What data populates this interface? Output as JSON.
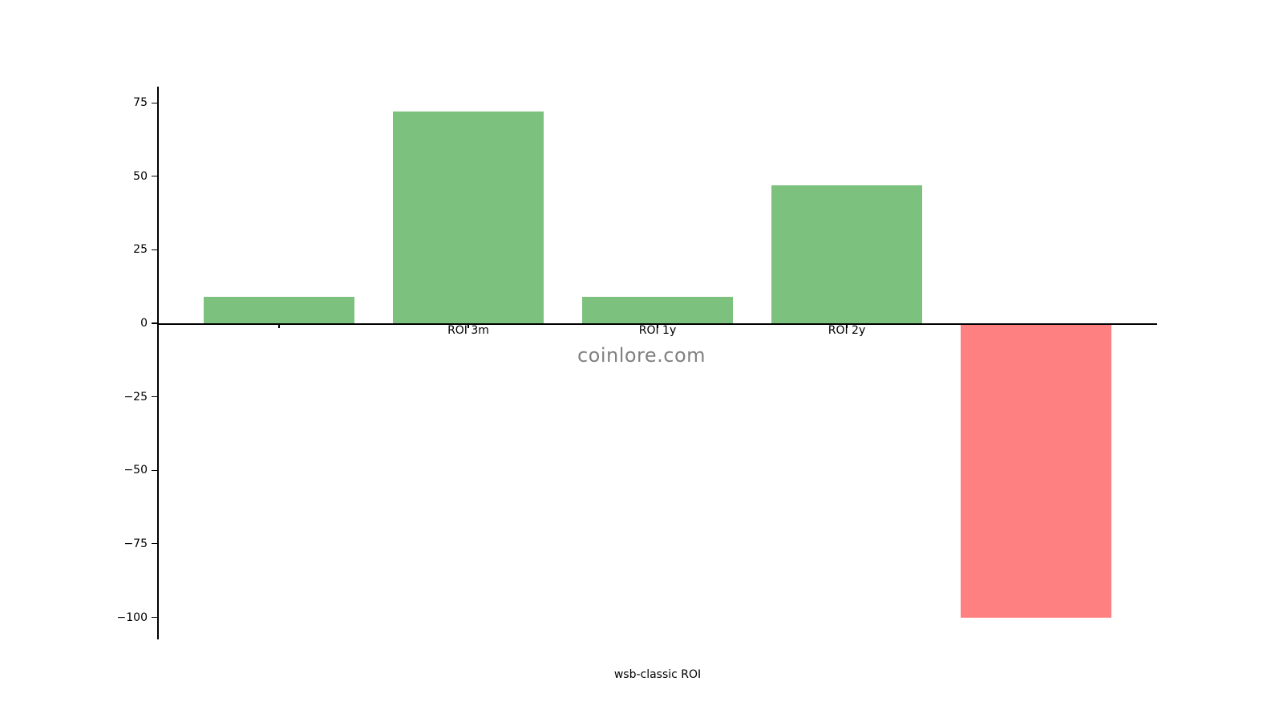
{
  "chart_data": {
    "type": "bar",
    "title": "",
    "xlabel": "wsb-classic ROI",
    "ylabel": "",
    "watermark": "coinlore.com",
    "categories": [
      "",
      "ROI 3m",
      "ROI 1y",
      "ROI 2y",
      ""
    ],
    "values": [
      9,
      72,
      9,
      47,
      -100
    ],
    "bar_colors": [
      "#7cc17d",
      "#7cc17d",
      "#7cc17d",
      "#7cc17d",
      "#ff8080"
    ],
    "positive_color": "#7cc17d",
    "negative_color": "#ff8080",
    "axis_color": "#000000",
    "tick_label_color": "#000000",
    "watermark_color": "#808080",
    "bar_width_units": 0.8,
    "xlim": [
      -0.64,
      4.64
    ],
    "ylim": [
      -107.5,
      80.5
    ],
    "yticks": [
      75,
      50,
      25,
      0,
      -25,
      -50,
      -75,
      -100
    ],
    "ytick_labels": [
      "75",
      "50",
      "25",
      "0",
      "−25",
      "−50",
      "−75",
      "−100"
    ],
    "xtick_positions": [
      0,
      1,
      2,
      3
    ],
    "xtick_labels": [
      "",
      "ROI 3m",
      "ROI 1y",
      "ROI 2y"
    ],
    "grid": false,
    "legend": null
  }
}
